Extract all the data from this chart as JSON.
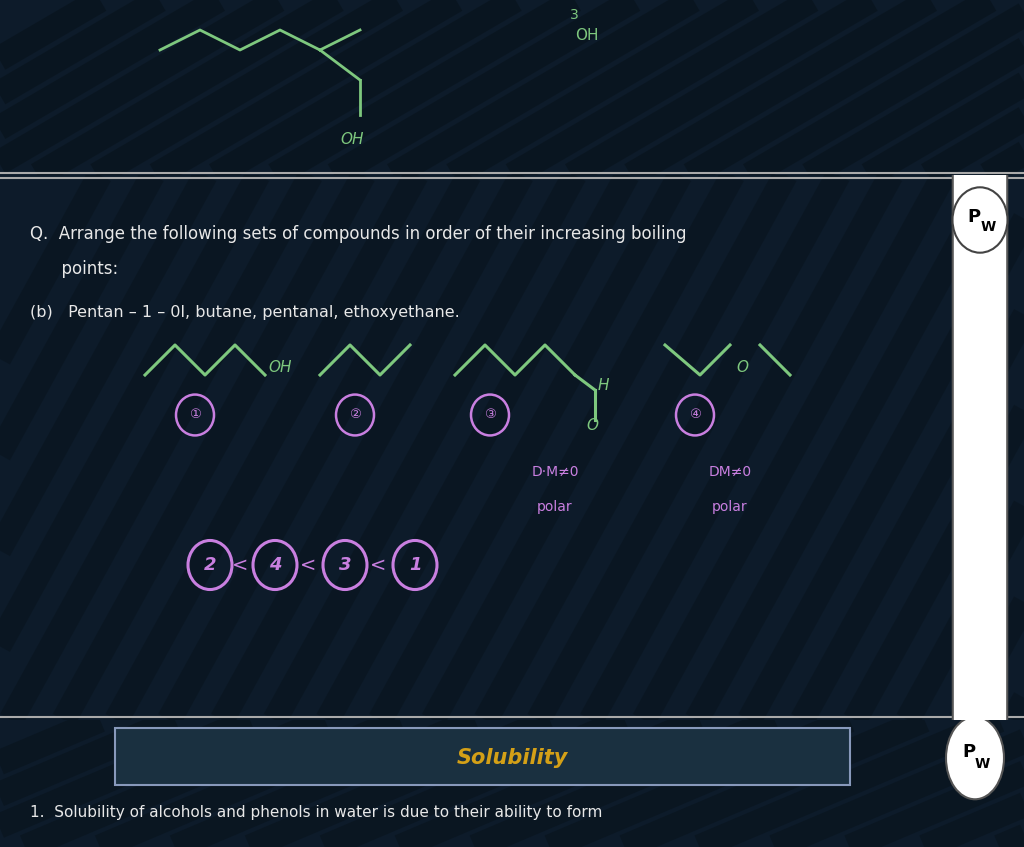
{
  "bg_color": "#0d1b2a",
  "panel_top_bg": "#0e1c1e",
  "panel_mid_bg": "#0e1c1e",
  "panel_bot_bg": "#0e1c1e",
  "green": "#7ec87e",
  "purple": "#c97fe0",
  "white": "#e8e8e8",
  "yellow_gold": "#d4a017",
  "gray_sep": "#aaaaaa",
  "box_border": "#8899aa",
  "box_bg": "#1a3040",
  "q_text": "Q.  Arrange the following sets of compounds in order of their increasing boiling",
  "q_text2": "      points:",
  "b_text": "(b)   Pentan – 1 – 0l, butane, pentanal, ethoxyethane.",
  "sol_title": "Solubility",
  "sol_sub": "1.  Solubility of alcohols and phenols in water is due to their ability to form",
  "pw_bg": "#ffffff",
  "pw_circle_edge": "#333333"
}
